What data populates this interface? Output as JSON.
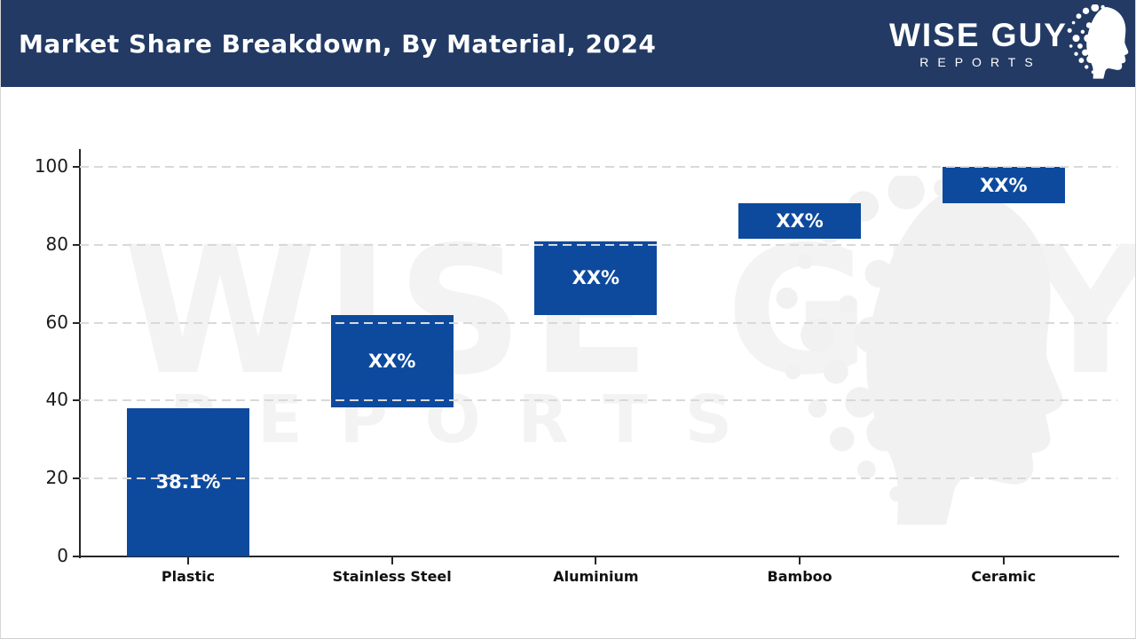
{
  "header": {
    "title": "Market Share Breakdown, By Material, 2024",
    "logo": {
      "line1": "WISE GUY",
      "line2": "REPORTS"
    }
  },
  "watermark": {
    "line1": "WISE GUY",
    "line2": "REPORTS"
  },
  "chart_data": {
    "type": "bar",
    "variant": "waterfall",
    "title": "Market Share Breakdown, By Material, 2024",
    "categories": [
      "Plastic",
      "Stainless Steel",
      "Aluminium",
      "Bamboo",
      "Ceramic"
    ],
    "series": [
      {
        "name": "Market Share %",
        "starts": [
          0,
          38.3,
          62.0,
          81.5,
          90.6
        ],
        "ends": [
          38.1,
          62.0,
          80.9,
          90.6,
          100
        ]
      }
    ],
    "bar_labels": [
      "38.1%",
      "XX%",
      "XX%",
      "XX%",
      "XX%"
    ],
    "ylim": [
      0,
      105
    ],
    "yticks": [
      0,
      20,
      40,
      60,
      80,
      100
    ],
    "grid": "horizontal dashed",
    "legend": "none",
    "bar_color": "#0d4a9e",
    "bar_label_color": "#ffffff",
    "grid_color": "#d9d9d9",
    "axis_color": "#262626"
  }
}
